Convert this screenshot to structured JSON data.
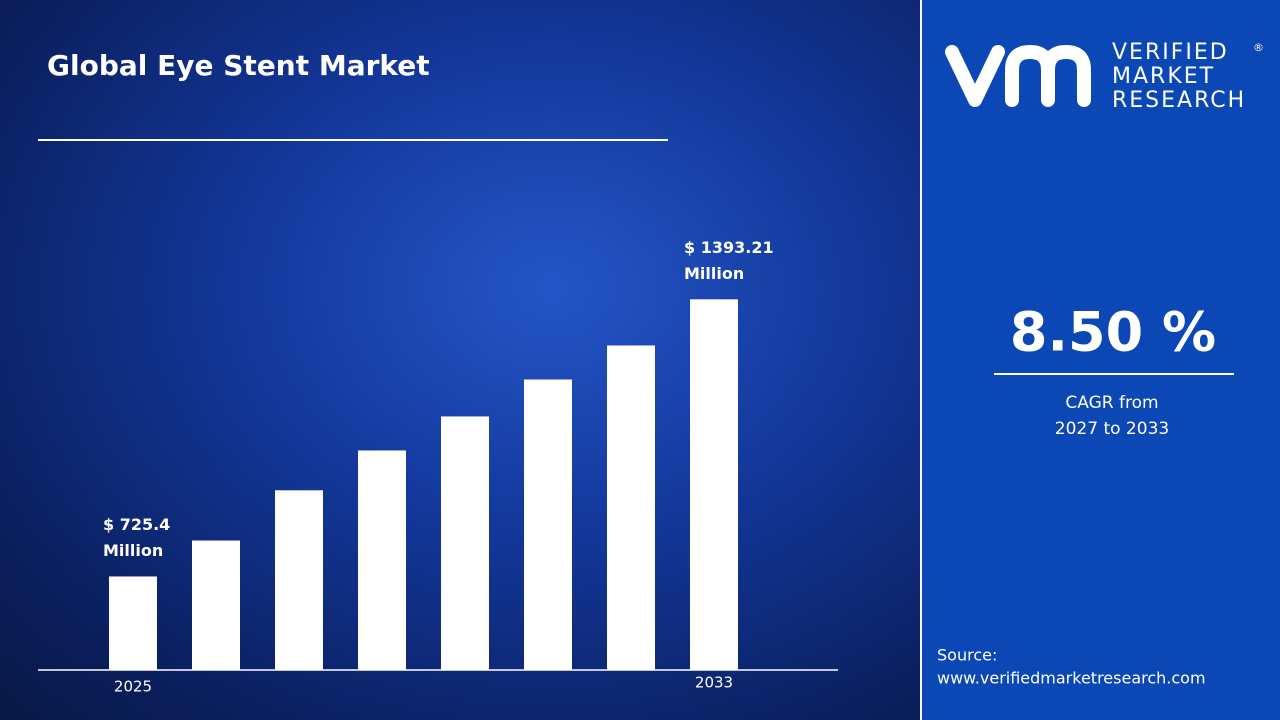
{
  "chart_data": {
    "type": "bar",
    "title": "Global Eye Stent Market",
    "categories": [
      "2025",
      null,
      null,
      null,
      null,
      null,
      null,
      "2033"
    ],
    "values": [
      725.4,
      812,
      933,
      1029,
      1111,
      1200,
      1282,
      1393.21
    ],
    "value_labels": [
      "$ 725.4 Million",
      null,
      null,
      null,
      null,
      null,
      null,
      "$ 1393.21 Million"
    ],
    "color": "#ffffff",
    "ylim": [
      500,
      1500
    ]
  },
  "cagr": {
    "value": "8.50 %",
    "label_line1": "CAGR from",
    "label_line2": "2027 to 2033"
  },
  "logo": {
    "line1": "VERIFIED",
    "line2": "MARKET",
    "line3": "RESEARCH",
    "mark": "®"
  },
  "source": {
    "label": "Source:",
    "url": "www.verifiedmarketresearch.com"
  }
}
